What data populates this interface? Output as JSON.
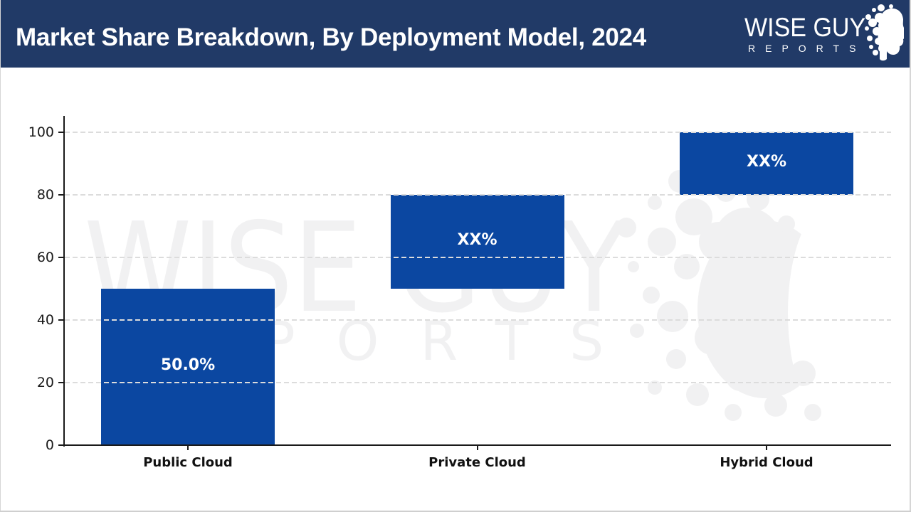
{
  "header": {
    "title": "Market Share Breakdown, By Deployment Model, 2024",
    "bg_color": "#213A67",
    "logo": {
      "wordmark": "WISE GUY",
      "subtext": "REPORTS"
    }
  },
  "watermark": {
    "wordmark": "WISE GUY",
    "subtext": "REPORTS"
  },
  "chart_data": {
    "type": "bar",
    "subtype": "floating-segment-waterfall",
    "title": "Market Share Breakdown, By Deployment Model, 2024",
    "categories": [
      "Public Cloud",
      "Private Cloud",
      "Hybrid Cloud"
    ],
    "series": [
      {
        "name": "Market share (%)",
        "segments": [
          {
            "category": "Public Cloud",
            "start": 0,
            "end": 50,
            "label": "50.0%"
          },
          {
            "category": "Private Cloud",
            "start": 50,
            "end": 80,
            "label": "XX%"
          },
          {
            "category": "Hybrid Cloud",
            "start": 80,
            "end": 100,
            "label": "XX%"
          }
        ]
      }
    ],
    "yticks": [
      0,
      20,
      40,
      60,
      80,
      100
    ],
    "ylim": [
      0,
      105
    ],
    "xlabel": "",
    "ylabel": "",
    "grid": "horizontal-dashed",
    "legend": "none",
    "bar_color": "#0B47A1",
    "bar_label_color": "#FFFFFF",
    "axis_color": "#1A1A1A",
    "grid_color": "#DCDCDC"
  }
}
